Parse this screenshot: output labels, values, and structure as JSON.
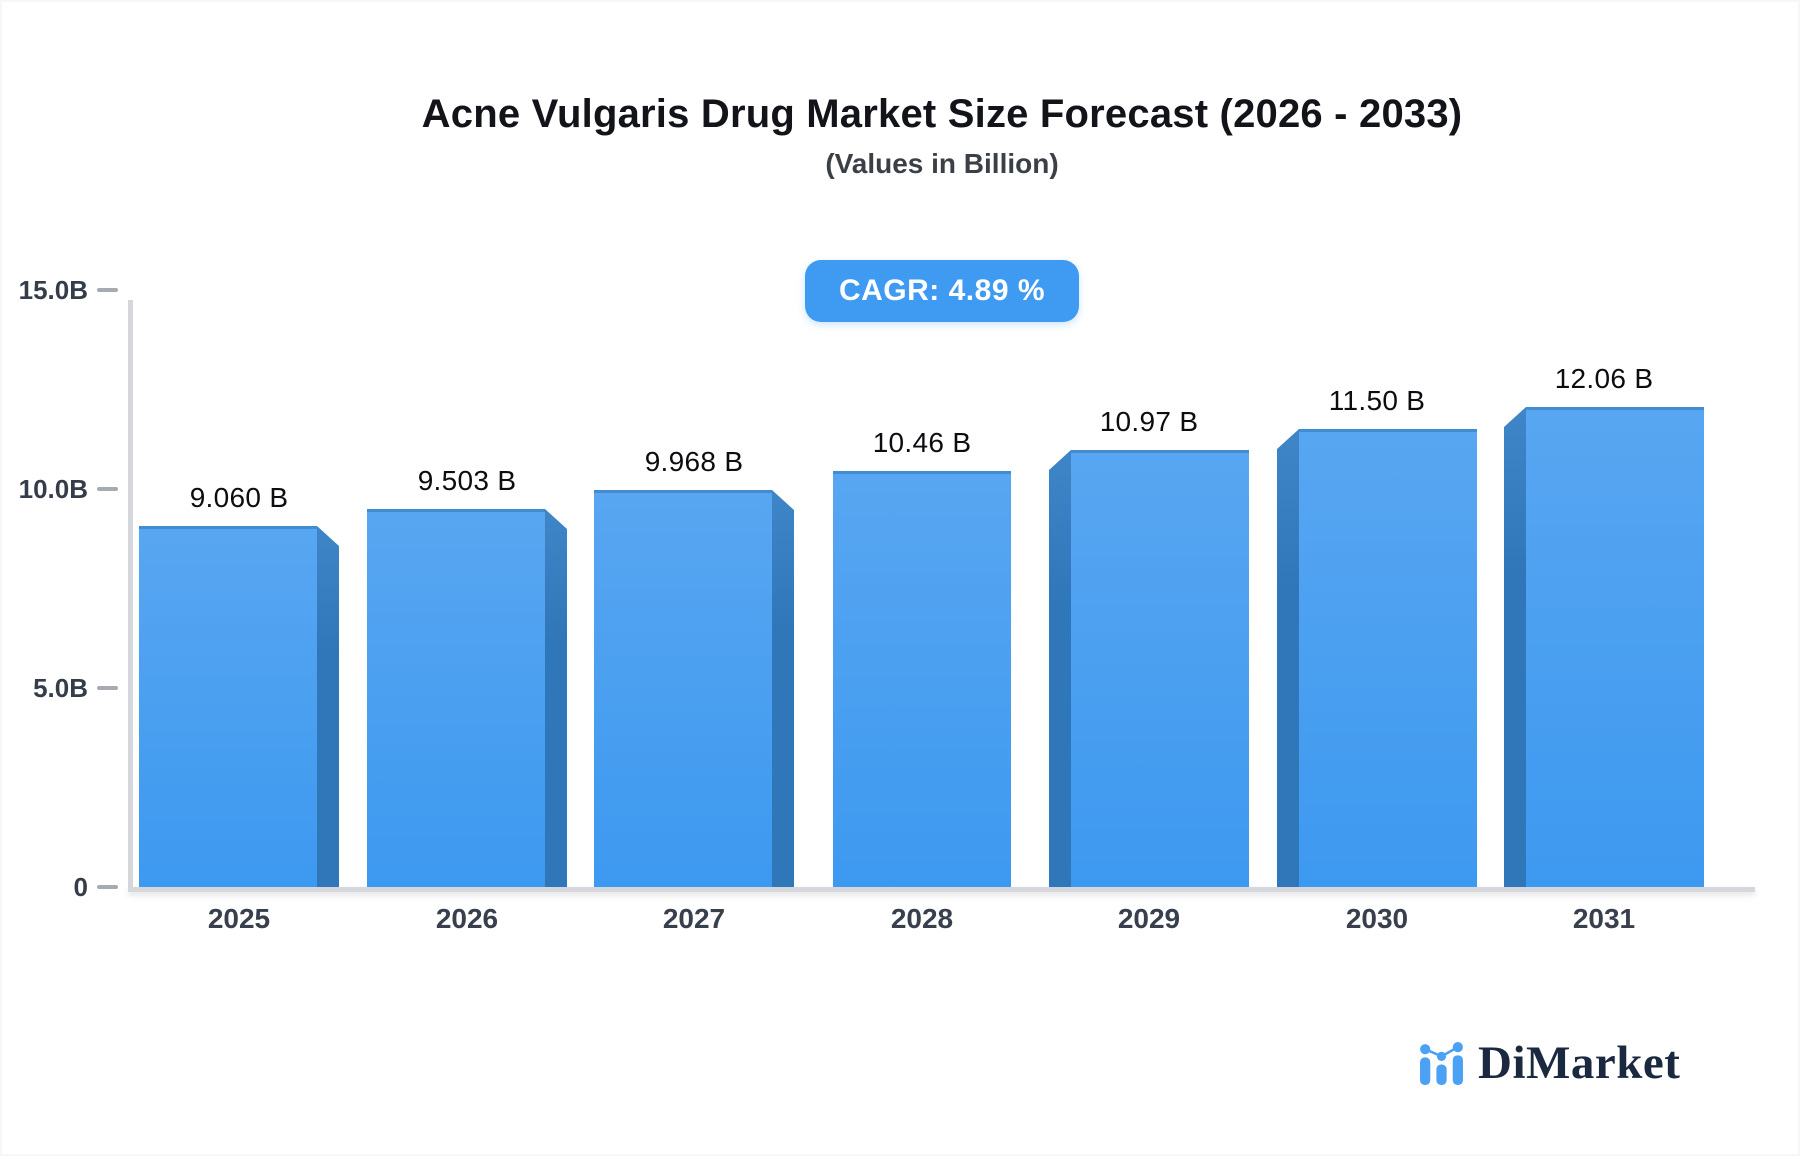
{
  "header": {
    "title": "Acne Vulgaris Drug Market Size Forecast (2026 - 2033)",
    "subtitle": "(Values in Billion)",
    "cagr_badge": "CAGR: 4.89 %"
  },
  "chart_data": {
    "type": "bar",
    "title": "Acne Vulgaris Drug Market Size Forecast (2026 - 2033)",
    "subtitle": "(Values in Billion)",
    "cagr_percent": 4.89,
    "categories": [
      "2025",
      "2026",
      "2027",
      "2028",
      "2029",
      "2030",
      "2031"
    ],
    "values": [
      9.06,
      9.503,
      9.968,
      10.46,
      10.97,
      11.5,
      12.06
    ],
    "value_labels": [
      "9.060 B",
      "9.503 B",
      "9.968 B",
      "10.46 B",
      "10.97 B",
      "11.50 B",
      "12.06 B"
    ],
    "y_ticks": [
      {
        "label": "15.0B",
        "value": 15
      },
      {
        "label": "10.0B",
        "value": 10
      },
      {
        "label": "5.0B",
        "value": 5
      },
      {
        "label": "0",
        "value": 0
      }
    ],
    "ylim": [
      0,
      15
    ],
    "grid": false,
    "legend": "none",
    "bar_face_color_top": "#58a6f1",
    "bar_face_color_bottom": "#3d99f0",
    "bar_side_color": "#2f77b9",
    "axis_color": "#d6d7dc",
    "tick_color": "#a6abb3",
    "value_label_color": "#0b0d10",
    "category_label_color": "#39404d"
  },
  "branding": {
    "logo_text": "DiMarket",
    "logo_icon": "mini-bar-chart-icon",
    "logo_icon_color": "#4ba1f4",
    "logo_text_color": "#1b2940"
  },
  "accent_color": "#3e9bf1"
}
